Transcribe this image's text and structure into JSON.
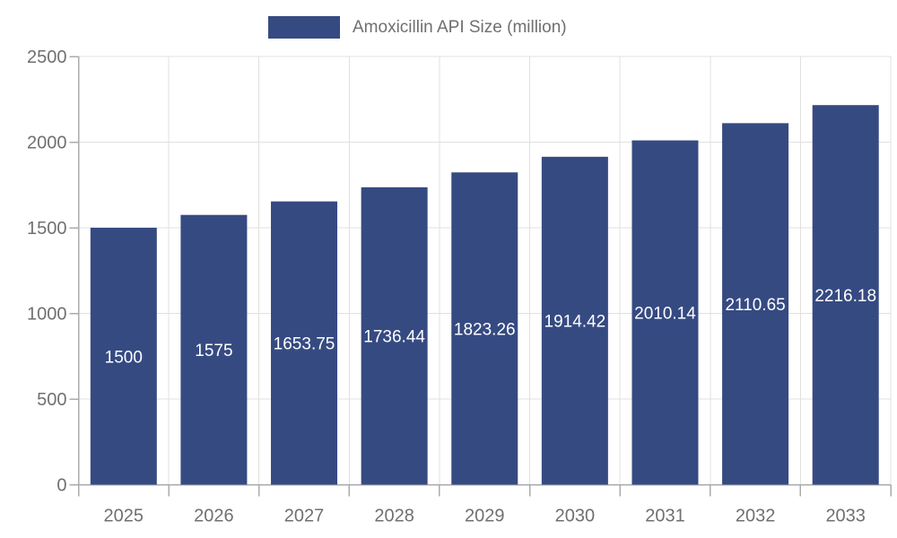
{
  "chart_data": {
    "type": "bar",
    "title": "",
    "legend": {
      "label": "Amoxicillin API Size (million)",
      "position": "top-center"
    },
    "categories": [
      "2025",
      "2026",
      "2027",
      "2028",
      "2029",
      "2030",
      "2031",
      "2032",
      "2033"
    ],
    "series": [
      {
        "name": "Amoxicillin API Size (million)",
        "values": [
          1500,
          1575,
          1653.75,
          1736.44,
          1823.26,
          1914.42,
          2010.14,
          2110.65,
          2216.18
        ]
      }
    ],
    "value_labels": [
      "1500",
      "1575",
      "1653.75",
      "1736.44",
      "1823.26",
      "1914.42",
      "2010.14",
      "2110.65",
      "2216.18"
    ],
    "xlabel": "",
    "ylabel": "",
    "ylim": [
      0,
      2500
    ],
    "yticks": [
      0,
      500,
      1000,
      1500,
      2000,
      2500
    ],
    "grid": true,
    "colors": {
      "bar": "#364a82",
      "bar_value_text": "#ffffff",
      "grid_line": "#e0e0e0",
      "axis_line": "#ababab",
      "tick_text": "#707070",
      "legend_text": "#6f6f6f",
      "background": "#ffffff"
    }
  }
}
